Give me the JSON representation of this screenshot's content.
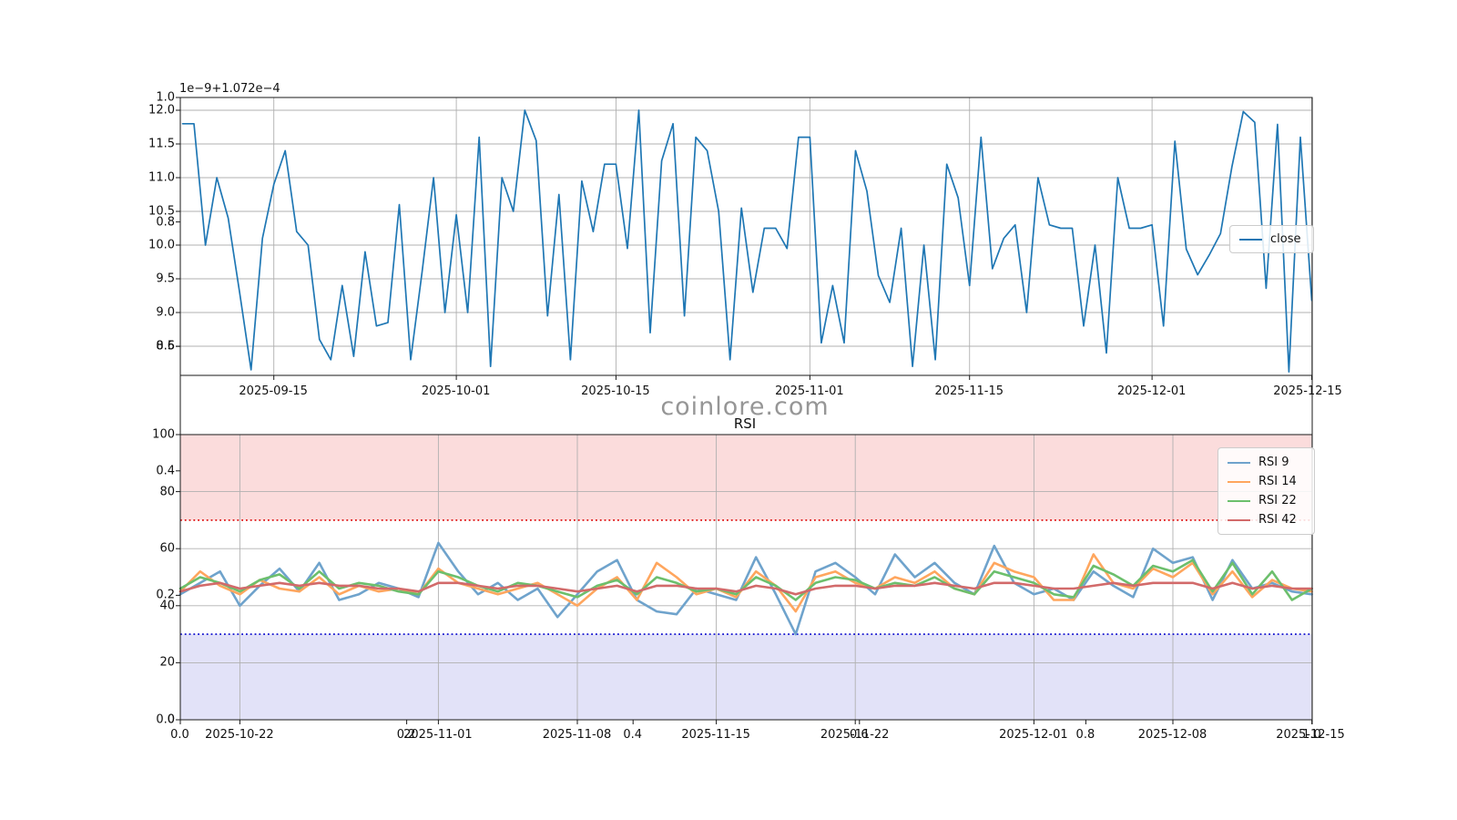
{
  "watermark": {
    "text": "coinlore.com",
    "color": "#969696"
  },
  "overlay_axis": {
    "y_tick_labels": [
      "1.0",
      "0.8",
      "0.6",
      "0.4",
      "0.2",
      "0.0"
    ],
    "x_tick_labels": [
      "0.0",
      "0.2",
      "0.4",
      "0.6",
      "0.8",
      "1.0"
    ]
  },
  "grid_color": "#b0b0b0",
  "chart_data": [
    {
      "type": "line",
      "name": "price-panel",
      "offset_text": "1e−9+1.072e−4",
      "x_start_date": "2025-09-07",
      "x_tick_labels": [
        "2025-09-15",
        "2025-10-01",
        "2025-10-15",
        "2025-11-01",
        "2025-11-15",
        "2025-12-01",
        "2025-12-15"
      ],
      "x_tick_day_index": [
        8,
        24,
        38,
        55,
        69,
        85,
        99
      ],
      "y_tick_labels": [
        "12.0",
        "11.5",
        "11.0",
        "10.5",
        "10.0",
        "9.5",
        "9.0",
        "8.5"
      ],
      "y_tick_values": [
        12.0,
        11.5,
        11.0,
        10.5,
        10.0,
        9.5,
        9.0,
        8.5
      ],
      "ylim": [
        8.07,
        12.19
      ],
      "grid": true,
      "legend_label": "close",
      "series": [
        {
          "name": "close",
          "color": "#1f77b4",
          "values": [
            11.8,
            11.8,
            10.0,
            11.0,
            10.4,
            9.3,
            8.15,
            10.1,
            10.9,
            11.4,
            10.2,
            10.0,
            8.6,
            8.3,
            9.4,
            8.35,
            9.9,
            8.8,
            8.85,
            10.6,
            8.3,
            9.6,
            11.0,
            9.0,
            10.45,
            9.0,
            11.6,
            8.2,
            11.0,
            10.5,
            12.0,
            11.55,
            8.95,
            10.75,
            8.3,
            10.95,
            10.2,
            11.2,
            11.2,
            9.95,
            12.0,
            8.7,
            11.25,
            11.8,
            8.95,
            11.6,
            11.4,
            10.5,
            8.3,
            10.55,
            9.3,
            10.25,
            10.25,
            9.95,
            11.6,
            11.6,
            8.55,
            9.4,
            8.55,
            11.4,
            10.8,
            9.55,
            9.15,
            10.25,
            8.2,
            10.0,
            8.3,
            11.2,
            10.7,
            9.4,
            11.6,
            9.65,
            10.1,
            10.3,
            9.0,
            11.0,
            10.3,
            10.25,
            10.25,
            8.8,
            10.0,
            8.4,
            11.0,
            10.25,
            10.25,
            10.3,
            8.8,
            11.54,
            9.94,
            9.56,
            9.85,
            10.17,
            11.16,
            11.98,
            11.82,
            9.36,
            11.79,
            8.12,
            11.6,
            9.18
          ]
        }
      ]
    },
    {
      "type": "line",
      "name": "rsi-panel",
      "title": "RSI",
      "x_start_date": "2025-10-19",
      "x_tick_labels": [
        "2025-10-22",
        "2025-11-01",
        "2025-11-08",
        "2025-11-15",
        "2025-11-22",
        "2025-12-01",
        "2025-12-08",
        "2025-12-15"
      ],
      "x_tick_day_index": [
        3,
        13,
        20,
        27,
        34,
        43,
        50,
        57
      ],
      "y_tick_labels": [
        "100",
        "80",
        "60",
        "40",
        "20",
        "0"
      ],
      "y_tick_values": [
        100,
        80,
        60,
        40,
        20,
        0
      ],
      "ylim": [
        0,
        100
      ],
      "grid": true,
      "overbought_level": 70,
      "oversold_level": 30,
      "overbought_band_color": "#fbdcdc",
      "oversold_band_color": "#e2e2f8",
      "overbought_line_color": "#dd0000",
      "oversold_line_color": "#0000cc",
      "series": [
        {
          "name": "RSI 9",
          "color": "#6fa3cc",
          "values": [
            44,
            48,
            52,
            40,
            47,
            53,
            45,
            55,
            42,
            44,
            48,
            46,
            43,
            62,
            52,
            44,
            48,
            42,
            46,
            36,
            44,
            52,
            56,
            42,
            38,
            37,
            46,
            44,
            42,
            57,
            44,
            30,
            52,
            55,
            50,
            44,
            58,
            50,
            55,
            48,
            44,
            61,
            48,
            44,
            46,
            42,
            52,
            47,
            43,
            60,
            55,
            57,
            42,
            56,
            46,
            48,
            45,
            44
          ]
        },
        {
          "name": "RSI 14",
          "color": "#ffa65e",
          "values": [
            45,
            52,
            47,
            44,
            49,
            46,
            45,
            50,
            44,
            47,
            45,
            46,
            44,
            53,
            48,
            46,
            44,
            46,
            48,
            44,
            40,
            46,
            50,
            42,
            55,
            50,
            44,
            46,
            43,
            52,
            47,
            38,
            50,
            52,
            48,
            46,
            50,
            48,
            52,
            46,
            44,
            55,
            52,
            50,
            42,
            42,
            58,
            48,
            46,
            53,
            50,
            55,
            44,
            52,
            43,
            49,
            46,
            45
          ]
        },
        {
          "name": "RSI 22",
          "color": "#6cbf6c",
          "values": [
            46,
            50,
            48,
            45,
            49,
            51,
            46,
            52,
            46,
            48,
            47,
            45,
            44,
            52,
            50,
            47,
            45,
            48,
            47,
            45,
            43,
            47,
            49,
            44,
            50,
            48,
            45,
            46,
            44,
            50,
            47,
            42,
            48,
            50,
            49,
            46,
            48,
            47,
            50,
            46,
            44,
            52,
            50,
            48,
            44,
            43,
            54,
            51,
            47,
            54,
            52,
            56,
            45,
            55,
            44,
            52,
            42,
            46
          ]
        },
        {
          "name": "RSI 42",
          "color": "#d26a6a",
          "values": [
            45,
            47,
            48,
            46,
            47,
            48,
            47,
            48,
            47,
            47,
            46,
            46,
            45,
            48,
            48,
            47,
            46,
            47,
            47,
            46,
            45,
            46,
            47,
            45,
            47,
            47,
            46,
            46,
            45,
            47,
            46,
            44,
            46,
            47,
            47,
            46,
            47,
            47,
            48,
            47,
            46,
            48,
            48,
            47,
            46,
            46,
            47,
            48,
            47,
            48,
            48,
            48,
            46,
            48,
            46,
            47,
            46,
            46
          ]
        }
      ]
    }
  ]
}
